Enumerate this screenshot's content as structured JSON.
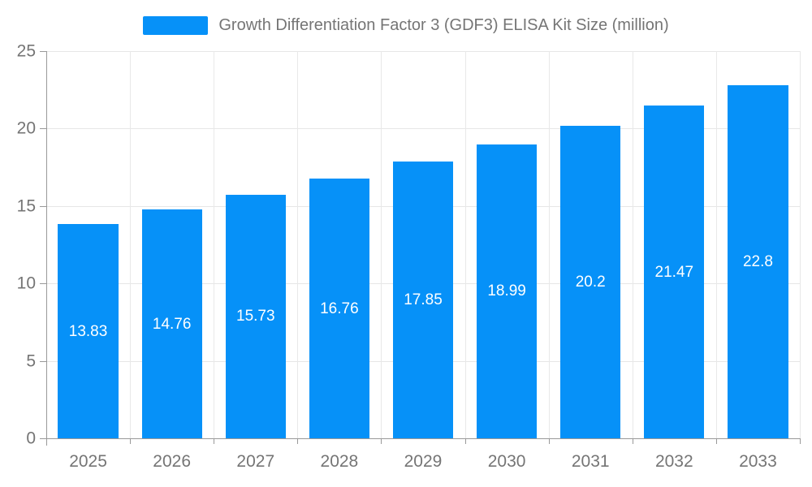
{
  "legend": {
    "label": "Growth Differentiation Factor 3 (GDF3) ELISA Kit Size (million)"
  },
  "chart_data": {
    "type": "bar",
    "title": "Growth Differentiation Factor 3 (GDF3) ELISA Kit Size (million)",
    "categories": [
      "2025",
      "2026",
      "2027",
      "2028",
      "2029",
      "2030",
      "2031",
      "2032",
      "2033"
    ],
    "values": [
      13.83,
      14.76,
      15.73,
      16.76,
      17.85,
      18.99,
      20.2,
      21.47,
      22.8
    ],
    "value_labels": [
      "13.83",
      "14.76",
      "15.73",
      "16.76",
      "17.85",
      "18.99",
      "20.2",
      "21.47",
      "22.8"
    ],
    "xlabel": "",
    "ylabel": "",
    "ylim": [
      0,
      25
    ],
    "yticks": [
      0,
      5,
      10,
      15,
      20,
      25
    ],
    "grid": true,
    "legend_position": "top-center",
    "value_label_position": "center-of-bar",
    "colors": {
      "bar": "#0691f8",
      "grid": "#e6e6e6",
      "axis": "#999999",
      "text": "#757575",
      "value_label": "#ffffff",
      "background": "#ffffff"
    }
  }
}
